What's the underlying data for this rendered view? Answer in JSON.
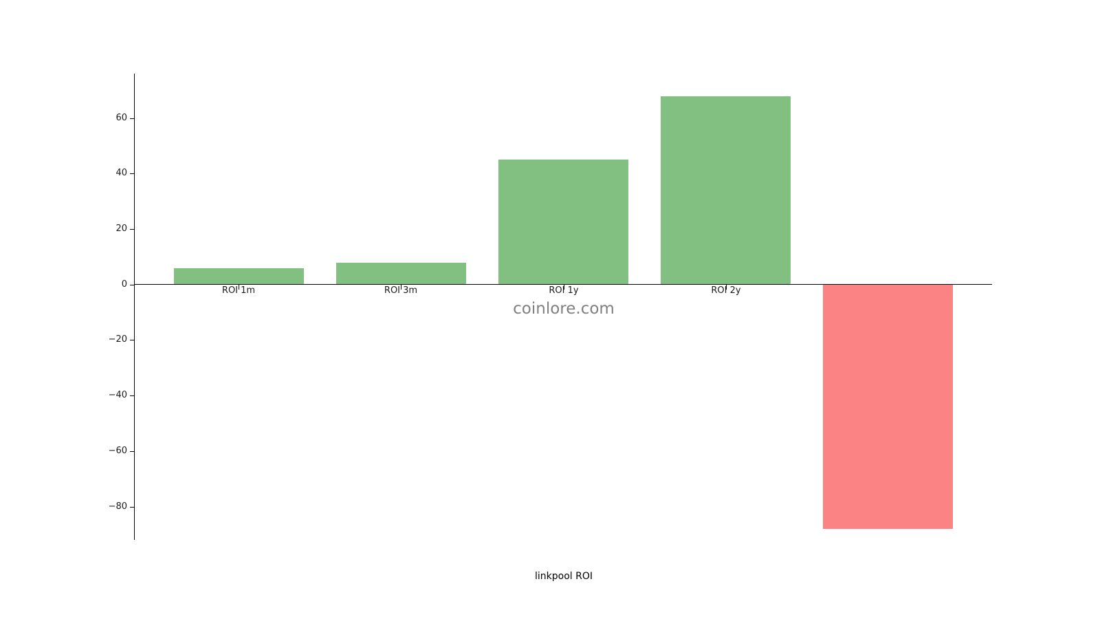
{
  "watermark": {
    "text": "coinlore.com",
    "color": "#7f7f7f"
  },
  "chart_data": {
    "type": "bar",
    "title": "",
    "xlabel": "linkpool ROI",
    "ylabel": "",
    "categories": [
      "ROI 1m",
      "ROI 3m",
      "ROI 1y",
      "ROI 2y",
      ""
    ],
    "values": [
      6,
      8,
      45,
      68,
      -88
    ],
    "positive_color": "#82C082",
    "negative_color": "#FC8383",
    "axis_color": "#000000",
    "ylim": [
      -92,
      76
    ],
    "yticks": [
      60,
      40,
      20,
      0,
      -20,
      -40,
      -60,
      -80
    ],
    "grid": false,
    "legend_position": "none"
  }
}
